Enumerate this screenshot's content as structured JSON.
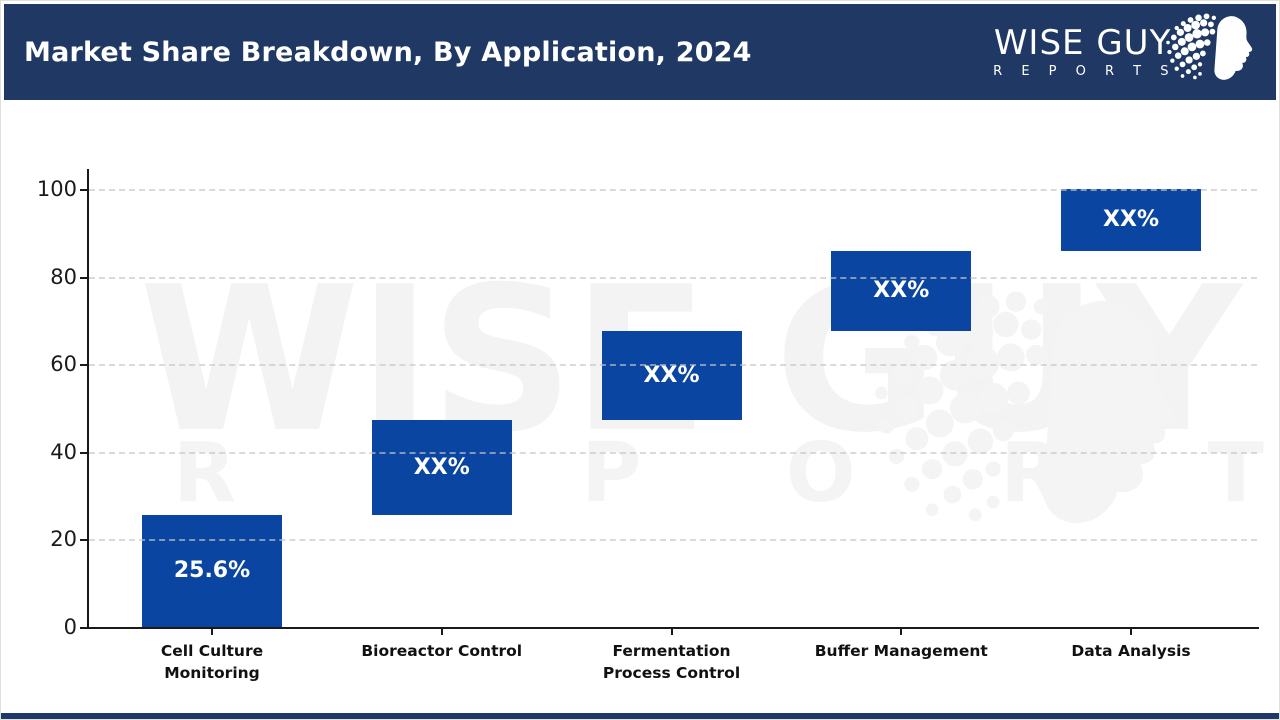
{
  "header": {
    "title": "Market Share Breakdown, By Application, 2024",
    "logo": {
      "name_line": "WISE GUY",
      "reports_line": "R E P O R T S"
    }
  },
  "watermark": {
    "name_line": "WISE GUY",
    "reports_line": "R E P O R T S"
  },
  "colors": {
    "header_bg": "#1f3864",
    "bar_blue": "#0a46a1",
    "grid_gray": "#c6c6c6",
    "axis_black": "#1a1a1a",
    "watermark_gray": "#f3f3f3",
    "bar_label_white": "#ffffff"
  },
  "chart_data": {
    "type": "bar",
    "variant": "waterfall",
    "title": "Market Share Breakdown, By Application, 2024",
    "xlabel": "",
    "ylabel": "",
    "ylim": [
      0,
      100
    ],
    "yticks": [
      0,
      20,
      40,
      60,
      80,
      100
    ],
    "grid": {
      "axis": "y",
      "style": "dashed",
      "drawn_over_bars": true
    },
    "legend": "none",
    "categories": [
      "Cell Culture\nMonitoring",
      "Bioreactor Control",
      "Fermentation\nProcess Control",
      "Buffer Management",
      "Data Analysis"
    ],
    "segments": [
      {
        "category": "Cell Culture Monitoring",
        "start": 0,
        "end": 25.6,
        "span_estimate": 25.6,
        "label": "25.6%"
      },
      {
        "category": "Bioreactor Control",
        "start": 25.6,
        "end": 47.2,
        "span_estimate": 21.6,
        "label": "XX%"
      },
      {
        "category": "Fermentation Process Control",
        "start": 47.2,
        "end": 67.6,
        "span_estimate": 20.4,
        "label": "XX%"
      },
      {
        "category": "Buffer Management",
        "start": 67.6,
        "end": 85.9,
        "span_estimate": 18.3,
        "label": "XX%"
      },
      {
        "category": "Data Analysis",
        "start": 85.9,
        "end": 100,
        "span_estimate": 14.1,
        "label": "XX%"
      }
    ]
  }
}
